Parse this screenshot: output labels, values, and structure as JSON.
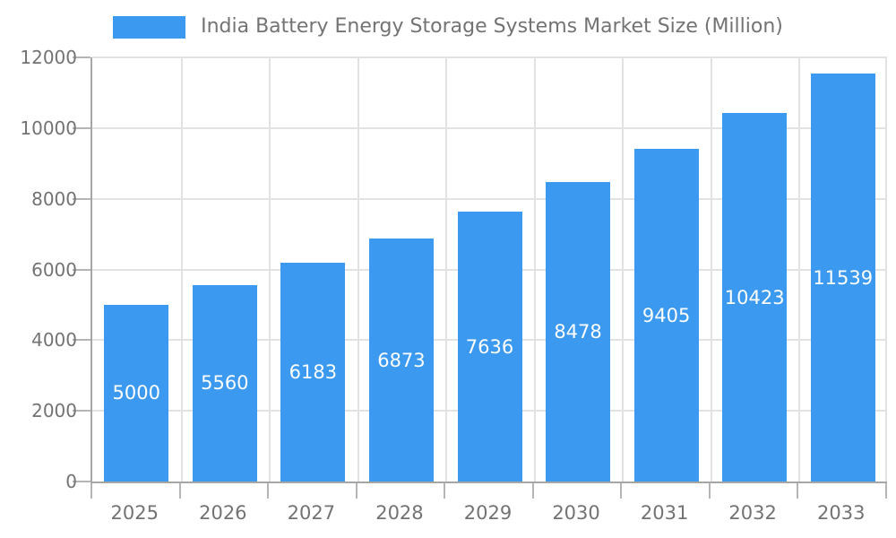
{
  "legend": {
    "label": "India Battery Energy Storage Systems Market Size (Million)"
  },
  "colors": {
    "bar": "#3B99F0",
    "axis": "#A6A6A6",
    "grid": "#E2E2E2",
    "tick": "#B5B5B5",
    "text": "#737373",
    "value_label": "#FFFFFF",
    "background": "#FFFFFF"
  },
  "chart_data": {
    "type": "bar",
    "title": "India Battery Energy Storage Systems Market Size (Million)",
    "categories": [
      "2025",
      "2026",
      "2027",
      "2028",
      "2029",
      "2030",
      "2031",
      "2032",
      "2033"
    ],
    "values": [
      5000,
      5560,
      6183,
      6873,
      7636,
      8478,
      9405,
      10423,
      11539
    ],
    "xlabel": "",
    "ylabel": "",
    "ylim": [
      0,
      12000
    ],
    "yticks": [
      0,
      2000,
      4000,
      6000,
      8000,
      10000,
      12000
    ],
    "grid": true,
    "legend_position": "top-center",
    "bar_labels": "inside-center-white"
  }
}
